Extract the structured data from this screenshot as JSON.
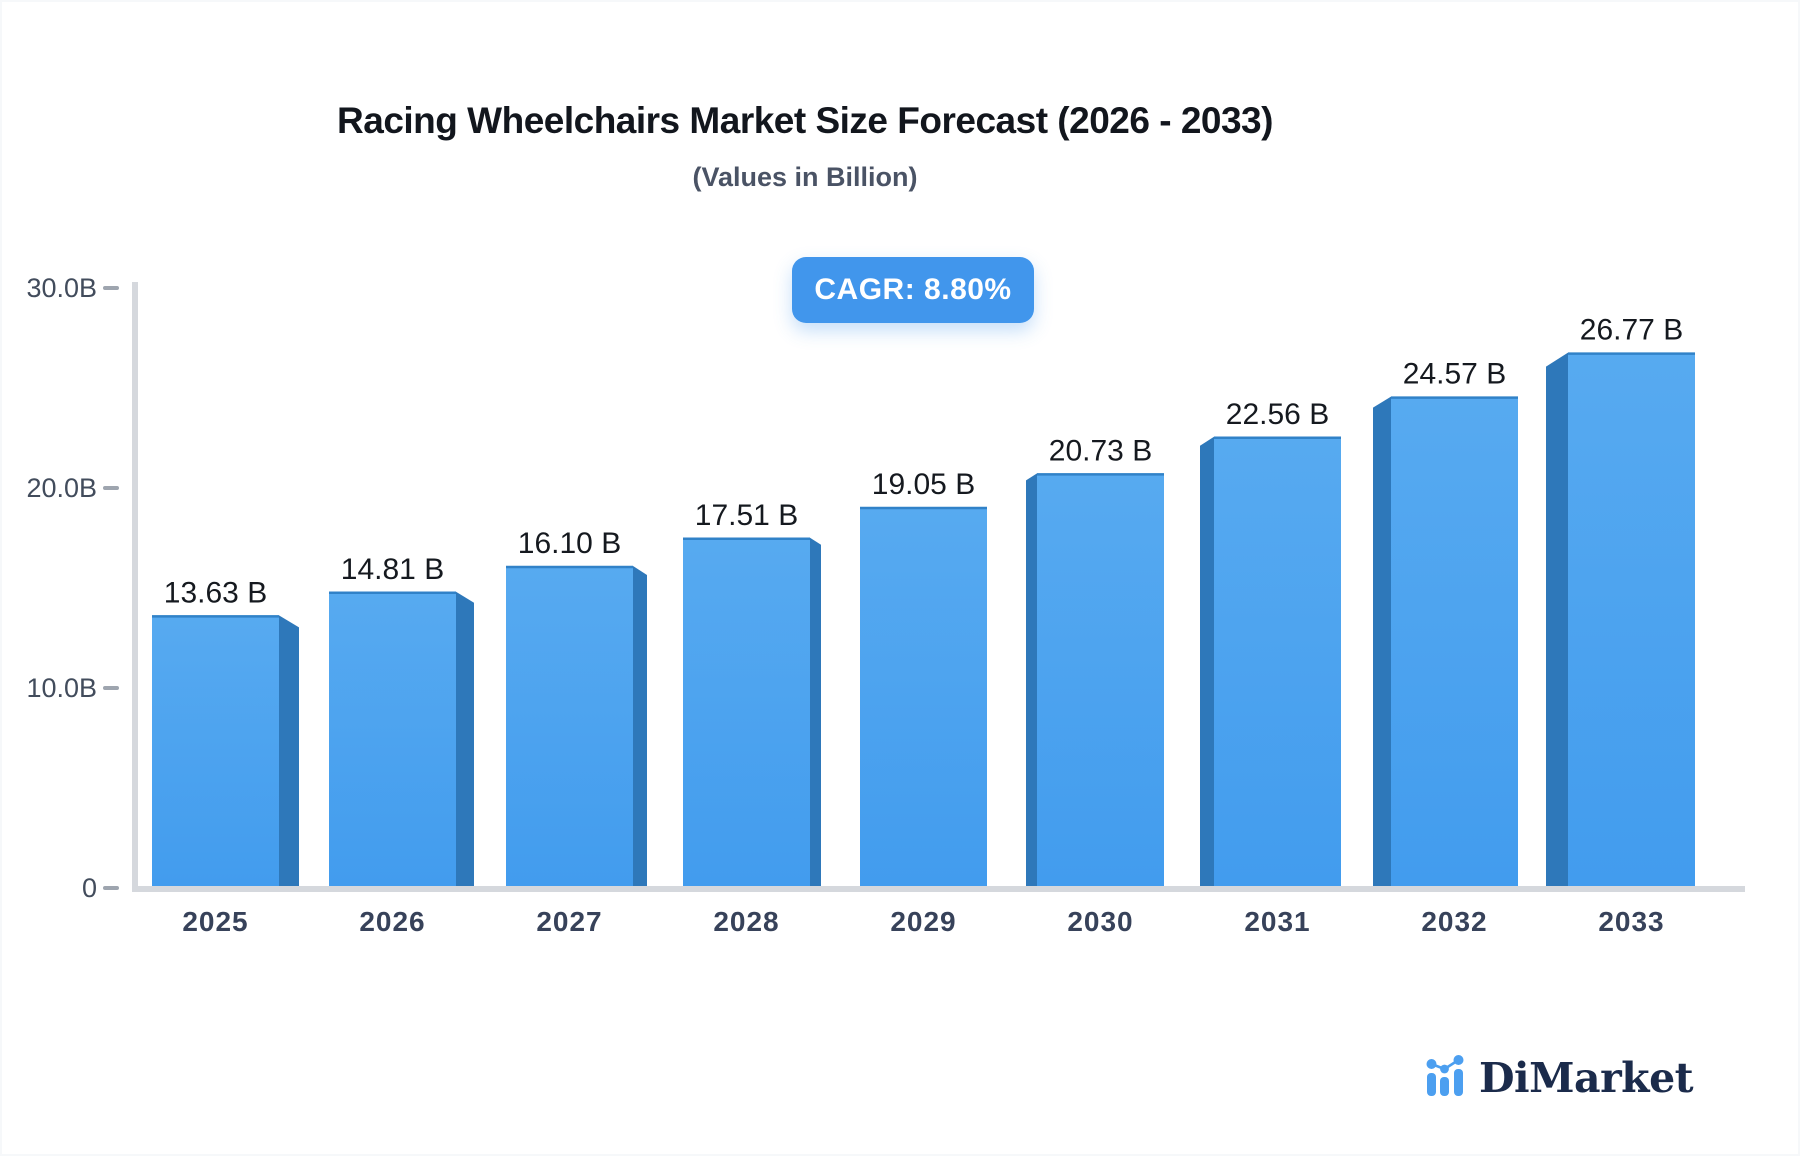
{
  "title": "Racing Wheelchairs Market Size Forecast (2026 - 2033)",
  "subtitle": "(Values in Billion)",
  "cagr_badge": "CAGR: 8.80%",
  "brand": {
    "name": "DiMarket"
  },
  "chart_data": {
    "type": "bar",
    "title": "Racing Wheelchairs Market Size Forecast (2026 - 2033)",
    "subtitle": "(Values in Billion)",
    "cagr_percent": 8.8,
    "categories": [
      "2025",
      "2026",
      "2027",
      "2028",
      "2029",
      "2030",
      "2031",
      "2032",
      "2033"
    ],
    "values": [
      13.63,
      14.81,
      16.1,
      17.51,
      19.05,
      20.73,
      22.56,
      24.57,
      26.77
    ],
    "value_labels": [
      "13.63 B",
      "14.81 B",
      "16.10 B",
      "17.51 B",
      "19.05 B",
      "20.73 B",
      "22.56 B",
      "24.57 B",
      "26.77 B"
    ],
    "unit": "Billion USD",
    "ylim": [
      0,
      30
    ],
    "y_ticks": [
      {
        "value": 0,
        "label": "0"
      },
      {
        "value": 10,
        "label": "10.0B"
      },
      {
        "value": 20,
        "label": "20.0B"
      },
      {
        "value": 30,
        "label": "30.0B"
      }
    ],
    "grid": false,
    "legend": false,
    "colors": {
      "bar_face_top": "#57AAF0",
      "bar_face_bottom": "#429CEE",
      "bar_side": "#2E78BA",
      "bar_top_edge": "#3182C8",
      "axis_line": "#D5D8DD",
      "tick_dash": "#9EA5AF",
      "tick_label": "#424C5C",
      "year_label": "#37425A",
      "value_label": "#15191F",
      "badge_bg": "#4196EC",
      "brand_blue": "#4C9FF0",
      "brand_navy": "#1B2B4B"
    }
  }
}
